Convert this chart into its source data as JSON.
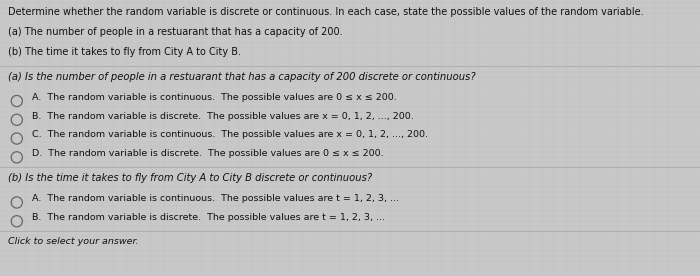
{
  "bg_color": "#c8c8c8",
  "grid_color": "#bbbbbb",
  "title_lines": [
    "Determine whether the random variable is discrete or continuous. In each case, state the possible values of the random variable.",
    "(a) The number of people in a restuarant that has a capacity of 200.",
    "(b) The time it takes to fly from City A to City B."
  ],
  "question_a": "(a) Is the number of people in a restuarant that has a capacity of 200 discrete or continuous?",
  "options_a": [
    "A.  The random variable is continuous.  The possible values are 0 ≤ x ≤ 200.",
    "B.  The random variable is discrete.  The possible values are x = 0, 1, 2, ..., 200.",
    "C.  The random variable is continuous.  The possible values are x = 0, 1, 2, ..., 200.",
    "D.  The random variable is discrete.  The possible values are 0 ≤ x ≤ 200."
  ],
  "question_b": "(b) Is the time it takes to fly from City A to City B discrete or continuous?",
  "options_b": [
    "A.  The random variable is continuous.  The possible values are t = 1, 2, 3, ...",
    "B.  The random variable is discrete.  The possible values are t = 1, 2, 3, ..."
  ],
  "footer": "Click to select your answer.",
  "font_size_title": 7.0,
  "font_size_question": 7.2,
  "font_size_option": 6.8,
  "font_size_footer": 6.8,
  "text_color": "#111111",
  "separator_color": "#999999"
}
